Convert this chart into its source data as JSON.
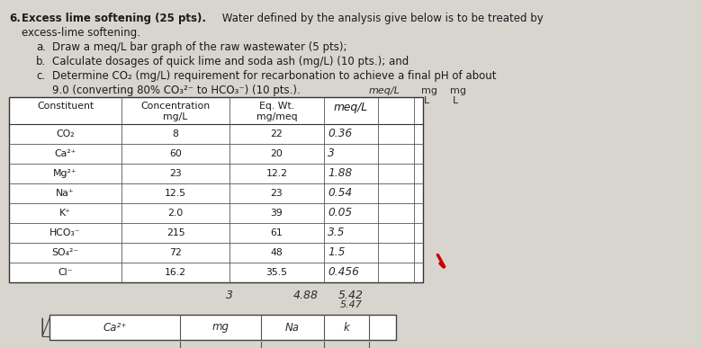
{
  "bg_color": "#d8d5cf",
  "table_bg": "#f0eeea",
  "text_color": "#1a1a1a",
  "handwritten_color": "#2a2a2a",
  "title_num": "6.",
  "title_bold_part": "Excess lime softening (25 pts).",
  "title_normal_part": " Water defined by the analysis give below is to be treated by",
  "title_line2": "excess-lime softening.",
  "bullet_a": "a.   Draw a meq/L bar graph of the raw wastewater (5 pts);",
  "bullet_b": "b.   Calculate dosages of quick lime and soda ash (mg/L) (10 pts.); and",
  "bullet_c1": "c.   Determine CO₂ (mg/L) requirement for recarbonation to achieve a final pH of about",
  "bullet_c2": "       9.0 (converting 80% CO₃²⁻ to HCO₃⁻) (10 pts.).",
  "col_headers": [
    "Constituent",
    "Concentration\nmg/L",
    "Eq. Wt.\nmg/meq",
    "meq/L"
  ],
  "rows": [
    [
      "CO₂",
      "8",
      "22",
      "0.36"
    ],
    [
      "Ca²⁺",
      "60",
      "20",
      "3"
    ],
    [
      "Mg²⁺",
      "23",
      "12.2",
      "1.88"
    ],
    [
      "Na⁺",
      "12.5",
      "23",
      "0.54"
    ],
    [
      "K⁺",
      "2.0",
      "39",
      "0.05"
    ],
    [
      "HCO₃⁻",
      "215",
      "61",
      "3.5"
    ],
    [
      "SO₄²⁻",
      "72",
      "48",
      "1.5"
    ],
    [
      "Cl⁻",
      "16.2",
      "35.5",
      "0.456"
    ]
  ],
  "above_table_meq": "meq/L",
  "above_table_mg1": "mg",
  "above_table_mg2": "mg",
  "above_table_L1": "L",
  "above_table_L2": "L",
  "bottom_3": "3",
  "bottom_488": "4.88",
  "bottom_542": "5.42",
  "bottom_547": "5.47",
  "bar_label_ca": "Ca²⁺",
  "bar_label_mg": "mg",
  "bar_label_na": "Na",
  "bar_label_k": "k",
  "red_check_color": "#cc0000",
  "font_size_title": 8.5,
  "font_size_table": 7.8,
  "font_size_hand": 8.0
}
